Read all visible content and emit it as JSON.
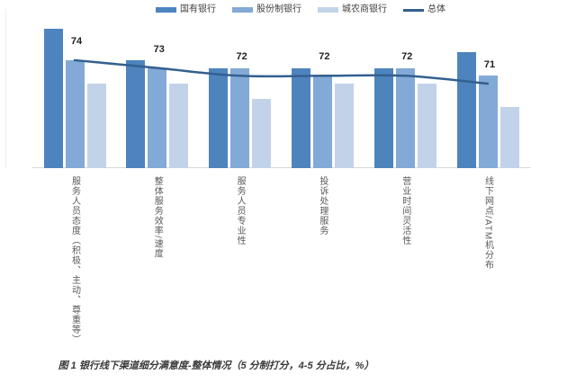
{
  "chart_data": {
    "type": "bar",
    "subtype": "grouped-bar-with-line-overlay",
    "categories": [
      "服务人员态度（积极、主动、尊重等）",
      "整体服务效率/速度",
      "服务人员专业性",
      "投诉处理服务",
      "营业时间灵活性",
      "线下网点/ATM机分布"
    ],
    "series": [
      {
        "name": "国有银行",
        "type": "bar",
        "color": "#4e84bd",
        "values": [
          78,
          74,
          73,
          73,
          73,
          75
        ]
      },
      {
        "name": "股份制银行",
        "type": "bar",
        "color": "#83a9d6",
        "values": [
          74,
          73,
          73,
          72,
          73,
          72
        ]
      },
      {
        "name": "城农商银行",
        "type": "bar",
        "color": "#c2d3e9",
        "values": [
          71,
          71,
          69,
          71,
          71,
          68
        ]
      },
      {
        "name": "总体",
        "type": "line",
        "color": "#33608f",
        "values": [
          74,
          73,
          72,
          72,
          72,
          71
        ],
        "data_labels": true
      }
    ],
    "ylim": [
      60,
      80
    ],
    "y_axis_visible": false,
    "grid": false,
    "legend_position": "top",
    "axis_color": "#d9d9d9",
    "data_label_color": "#1f1f1f",
    "category_label_color": "#595959"
  },
  "caption": "图 1 银行线下渠道细分满意度-整体情况（5 分制打分，4-5 分占比，%）"
}
